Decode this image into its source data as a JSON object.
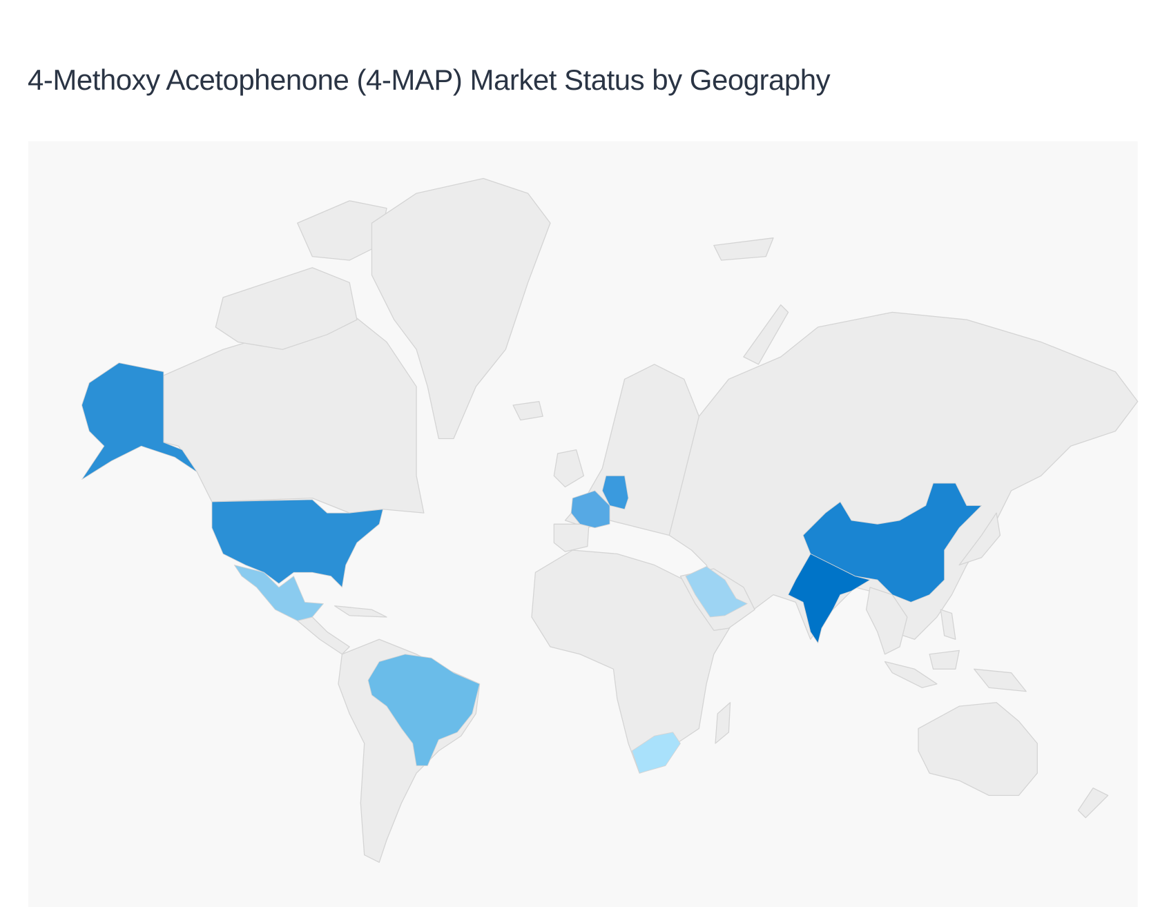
{
  "title": "4-Methoxy Acetophenone (4-MAP) Market Status by Geography",
  "map": {
    "background_color": "#f8f8f8",
    "land_color": "#ececec",
    "border_color": "#d4d4d4",
    "highlighted_countries": [
      {
        "id": "india",
        "name": "India",
        "color": "#0074c8"
      },
      {
        "id": "china",
        "name": "China",
        "color": "#1a85d2"
      },
      {
        "id": "usa",
        "name": "United States",
        "color": "#2b90d6"
      },
      {
        "id": "germany",
        "name": "Germany",
        "color": "#3a9ade"
      },
      {
        "id": "france",
        "name": "France",
        "color": "#56a9e4"
      },
      {
        "id": "brazil",
        "name": "Brazil",
        "color": "#6abce9"
      },
      {
        "id": "mexico",
        "name": "Mexico",
        "color": "#8acbef"
      },
      {
        "id": "saudi-arabia",
        "name": "Saudi Arabia",
        "color": "#9dd4f3"
      },
      {
        "id": "south-africa",
        "name": "South Africa",
        "color": "#a9e1fb"
      }
    ]
  }
}
